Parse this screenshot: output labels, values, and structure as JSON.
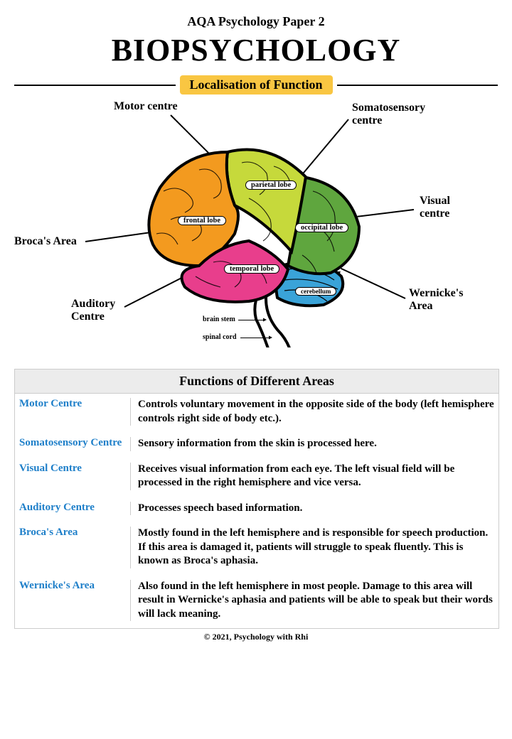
{
  "header": {
    "subtitle": "AQA Psychology Paper 2",
    "title": "BIOPSYCHOLOGY",
    "section_badge": "Localisation of Function"
  },
  "diagram": {
    "lobes": {
      "frontal": {
        "label": "frontal lobe",
        "fill": "#f39a1f"
      },
      "parietal": {
        "label": "parietal lobe",
        "fill": "#c6d93b"
      },
      "temporal": {
        "label": "temporal lobe",
        "fill": "#e83e8c"
      },
      "occipital": {
        "label": "occipital lobe",
        "fill": "#5fa63e"
      },
      "cerebellum": {
        "label": "cerebellum",
        "fill": "#3aa3d8"
      }
    },
    "stem_labels": {
      "brain_stem": "brain stem",
      "spinal_cord": "spinal cord"
    },
    "external_labels": {
      "motor": "Motor centre",
      "somato": "Somatosensory\ncentre",
      "visual": "Visual\ncentre",
      "broca": "Broca's Area",
      "auditory": "Auditory\nCentre",
      "wernicke": "Wernicke's\nArea"
    }
  },
  "table": {
    "title": "Functions of Different Areas",
    "key_color": "#1e7fc9",
    "rows": [
      {
        "k": "Motor Centre",
        "v": "Controls voluntary movement in the opposite side of the body (left hemisphere controls right side of body etc.)."
      },
      {
        "k": "Somatosensory Centre",
        "v": "Sensory information from the skin is processed here."
      },
      {
        "k": "Visual Centre",
        "v": "Receives visual information from each eye. The left visual field will be processed in the right hemisphere and vice versa."
      },
      {
        "k": "Auditory Centre",
        "v": "Processes speech based information."
      },
      {
        "k": "Broca's Area",
        "v": "Mostly found in the left hemisphere and is responsible for speech production. If this area is damaged it, patients will struggle to speak fluently. This is known as Broca's aphasia."
      },
      {
        "k": "Wernicke's Area",
        "v": "Also found in the left hemisphere in most people. Damage to this area will result in Wernicke's aphasia and patients will be able to speak but their words will lack meaning."
      }
    ]
  },
  "footer": "© 2021, Psychology with Rhi"
}
